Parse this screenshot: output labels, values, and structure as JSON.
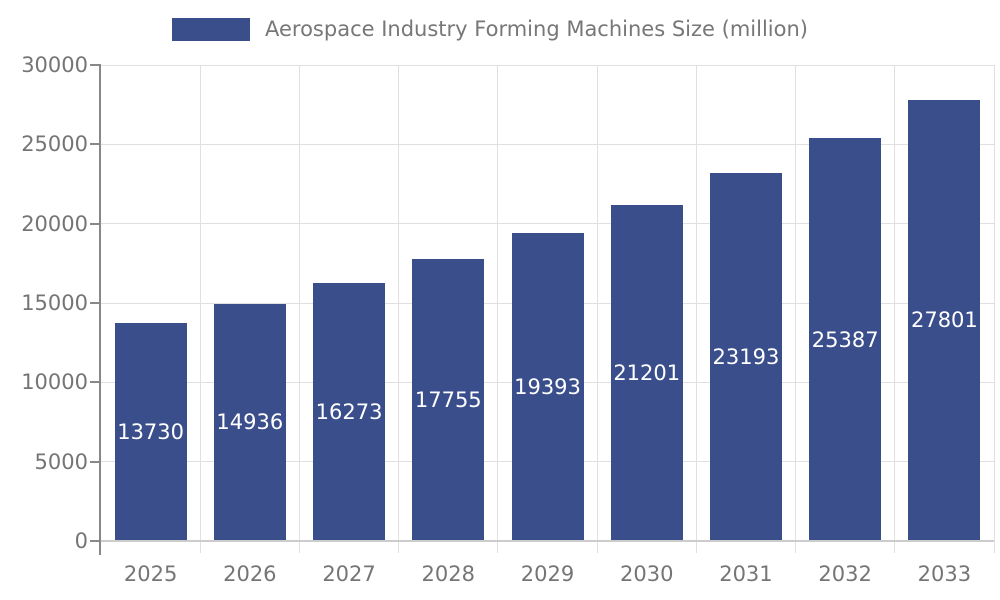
{
  "chart_data": {
    "type": "bar",
    "legend": {
      "label": "Aerospace Industry Forming Machines Size (million)"
    },
    "categories": [
      "2025",
      "2026",
      "2027",
      "2028",
      "2029",
      "2030",
      "2031",
      "2032",
      "2033"
    ],
    "values": [
      13730,
      14936,
      16273,
      17755,
      19393,
      21201,
      23193,
      25387,
      27801
    ],
    "value_labels": [
      "13730",
      "14936",
      "16273",
      "17755",
      "19393",
      "21201",
      "23193",
      "25387",
      "27801"
    ],
    "ylim": [
      0,
      30000
    ],
    "yticks": [
      0,
      5000,
      10000,
      15000,
      20000,
      25000,
      30000
    ],
    "ytick_labels": [
      "0",
      "5000",
      "10000",
      "15000",
      "20000",
      "25000",
      "30000"
    ],
    "grid": true,
    "legend_position": "top-left",
    "colors": {
      "bar": "#3a4e8c",
      "grid_line": "#e0e0e0",
      "y_axis_line": "#888888",
      "x_axis_line": "#cccccc",
      "tick_label": "#757575",
      "legend_text": "#777777",
      "value_label": "#ffffff",
      "background": "#ffffff"
    }
  }
}
